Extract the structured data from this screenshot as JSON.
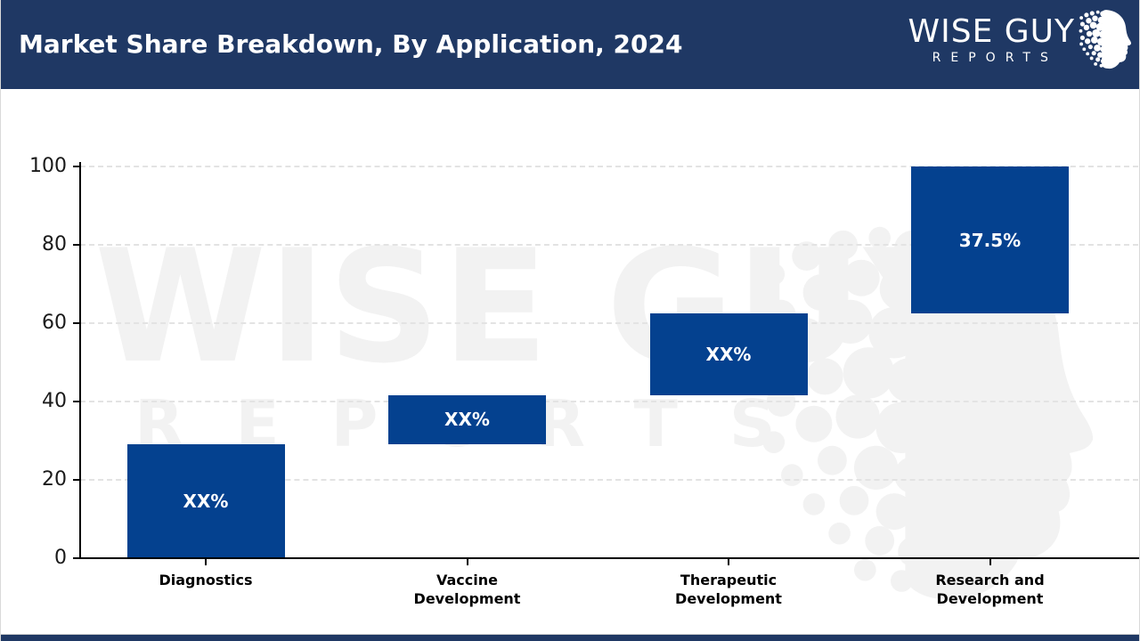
{
  "header": {
    "title": "Market Share Breakdown, By Application, 2024",
    "logo": {
      "line1": "WISE GUY",
      "line2": "REPORTS",
      "head_icon": "dotted-face-profile"
    }
  },
  "watermark": {
    "line1": "WISE GUY",
    "line2": "REPORTS"
  },
  "colors": {
    "header_bg": "#1f3864",
    "footer_bg": "#1f3864",
    "bar": "#04418f",
    "grid": "#e3e3e3",
    "watermark": "#f2f2f2",
    "axis": "#000000",
    "bar_label": "#ffffff",
    "title": "#ffffff",
    "tick": "#1a1a1a"
  },
  "chart_data": {
    "type": "bar",
    "subtype": "waterfall",
    "title": "Market Share Breakdown, By Application, 2024",
    "categories": [
      "Diagnostics",
      "Vaccine Development",
      "Therapeutic Development",
      "Research and Development"
    ],
    "series": [
      {
        "name": "Market Share",
        "segments": [
          {
            "category": "Diagnostics",
            "start": 0,
            "end": 29.2,
            "label": "XX%"
          },
          {
            "category": "Vaccine Development",
            "start": 29.2,
            "end": 41.7,
            "label": "XX%"
          },
          {
            "category": "Therapeutic Development",
            "start": 41.7,
            "end": 62.5,
            "label": "XX%"
          },
          {
            "category": "Research and Development",
            "start": 62.5,
            "end": 100,
            "label": "37.5%"
          }
        ]
      }
    ],
    "xlabel": "",
    "ylabel": "",
    "ylim": [
      0,
      105
    ],
    "yticks": [
      0,
      20,
      40,
      60,
      80,
      100
    ],
    "grid": "horizontal-dashed",
    "legend": "none"
  }
}
